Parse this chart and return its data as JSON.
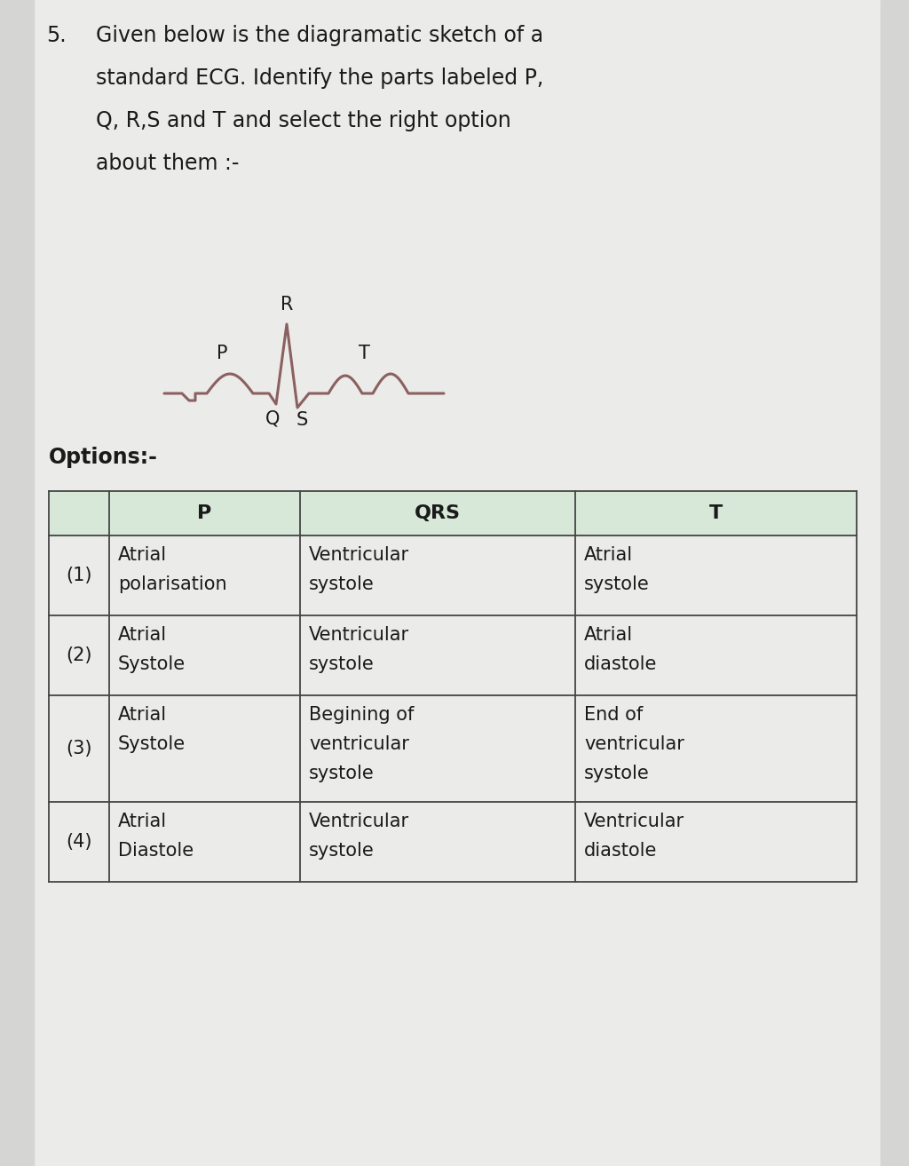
{
  "page_bg": "#ebebea",
  "left_strip_color": "#d5d5d3",
  "right_strip_color": "#d5d5d3",
  "question_number": "5.",
  "question_text_lines": [
    "Given below is the diagramatic sketch of a",
    "standard ECG. Identify the parts labeled P,",
    "Q, R,S and T and select the right option",
    "about them :-"
  ],
  "options_label": "Options:-",
  "table_header": [
    "",
    "P",
    "QRS",
    "T"
  ],
  "table_rows": [
    [
      "(1)",
      "Atrial\npolarisation",
      "Ventricular\nsystole",
      "Atrial\nsystole"
    ],
    [
      "(2)",
      "Atrial\nSystole",
      "Ventricular\nsystole",
      "Atrial\ndiastole"
    ],
    [
      "(3)",
      "Atrial\nSystole",
      "Begining of\nventricular\nsystole",
      "End of\nventricular\nsystole"
    ],
    [
      "(4)",
      "Atrial\nDiastole",
      "Ventricular\nsystole",
      "Ventricular\ndiastole"
    ]
  ],
  "table_header_bg": "#d8e8d8",
  "ecg_color": "#8B6060",
  "text_color": "#1a1a1a",
  "font_size_question": 17,
  "font_size_table": 15,
  "font_size_header": 16,
  "font_size_ecg_label": 15
}
